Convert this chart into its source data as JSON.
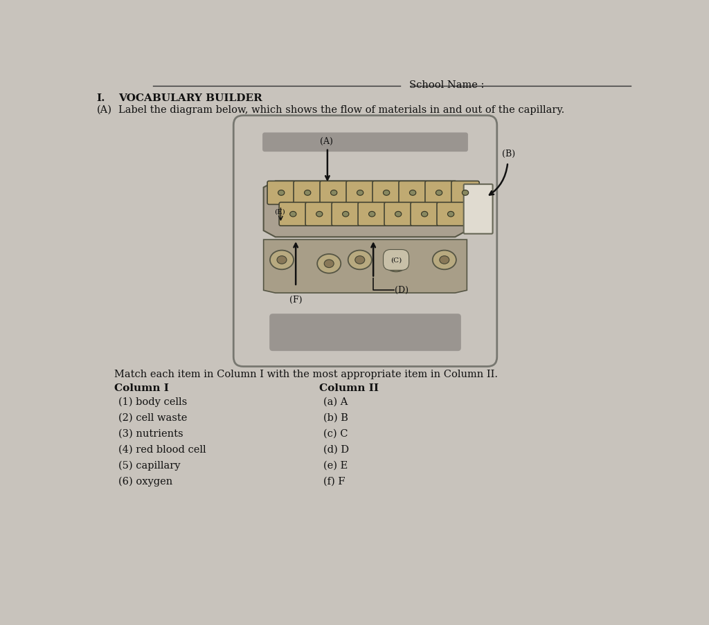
{
  "bg_color": "#c8c3bc",
  "title_num": "I.",
  "section_label": "(A)",
  "vocab_header": "VOCABULARY BUILDER",
  "instruction": "Label the diagram below, which shows the flow of materials in and out of the capillary.",
  "school_label": "School Name :",
  "match_instruction": "Match each item in Column I with the most appropriate item in Column II.",
  "col1_header": "Column I",
  "col2_header": "Column II",
  "col1_items": [
    "(1) body cells",
    "(2) cell waste",
    "(3) nutrients",
    "(4) red blood cell",
    "(5) capillary",
    "(6) oxygen"
  ],
  "col2_items": [
    "(a) A",
    "(b) B",
    "(c) C",
    "(d) D",
    "(e) E",
    "(f) F"
  ],
  "diagram_labels": [
    "(A)",
    "(B)",
    "(C)",
    "(D)",
    "(E)",
    "(F)"
  ]
}
